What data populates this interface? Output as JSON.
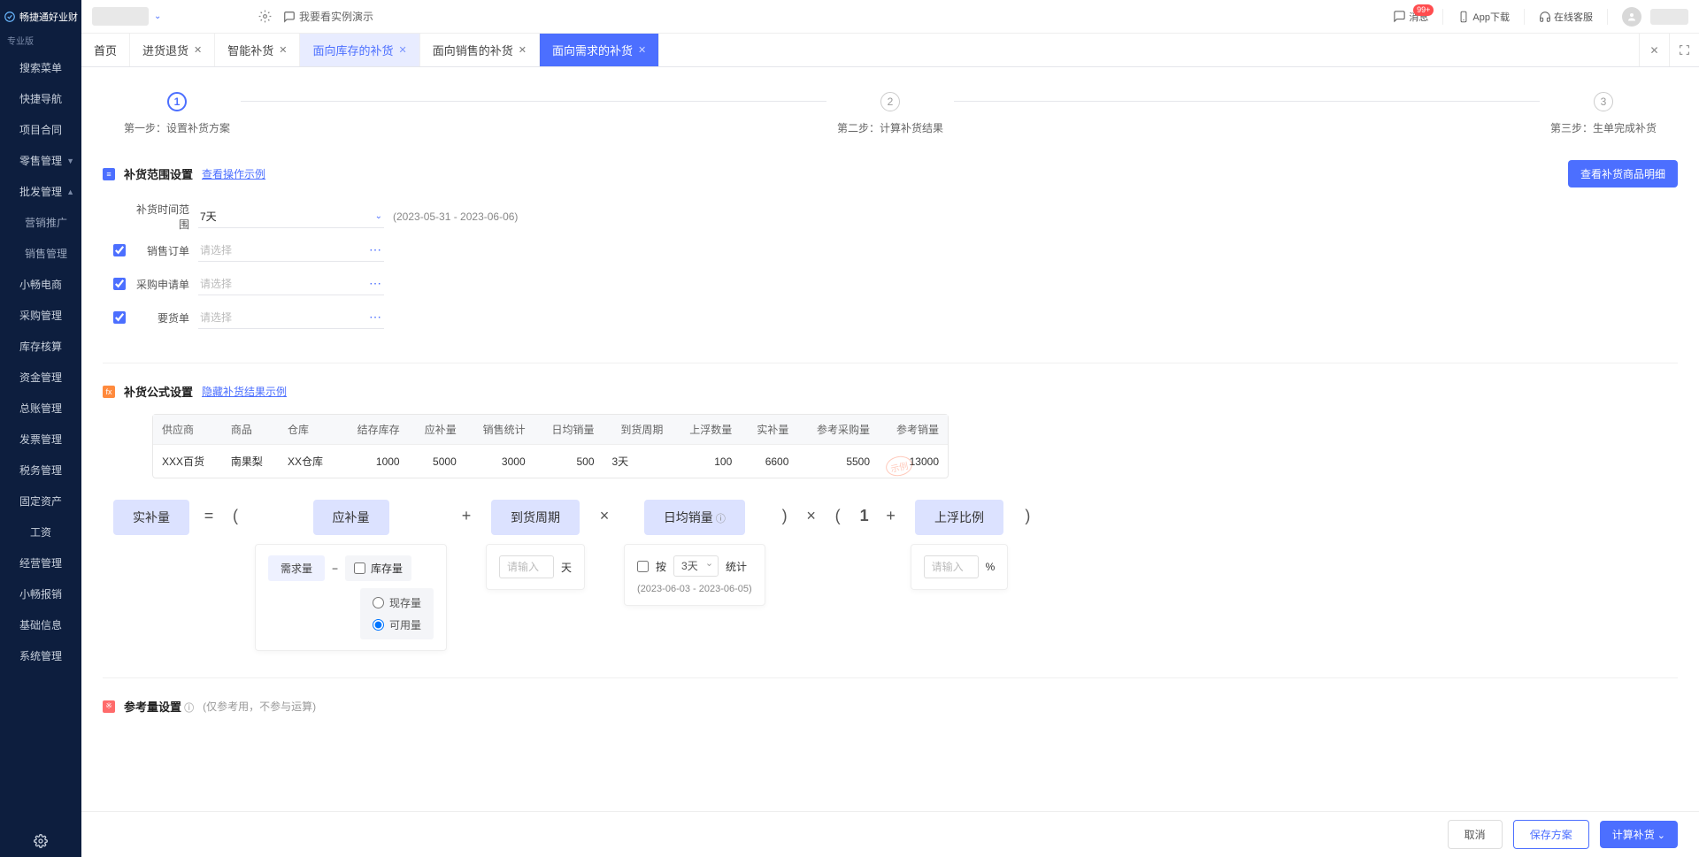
{
  "brand": {
    "name": "畅捷通好业财",
    "edition": "专业版"
  },
  "sidebar": {
    "items": [
      {
        "label": "搜索菜单",
        "chev": ""
      },
      {
        "label": "快捷导航",
        "chev": ""
      },
      {
        "label": "项目合同",
        "chev": ""
      },
      {
        "label": "零售管理",
        "chev": "▼"
      },
      {
        "label": "批发管理",
        "chev": "▲"
      },
      {
        "label": "营销推广",
        "sub": true
      },
      {
        "label": "销售管理",
        "sub": true
      },
      {
        "label": "小畅电商",
        "chev": ""
      },
      {
        "label": "采购管理",
        "chev": ""
      },
      {
        "label": "库存核算",
        "chev": ""
      },
      {
        "label": "资金管理",
        "chev": ""
      },
      {
        "label": "总账管理",
        "chev": ""
      },
      {
        "label": "发票管理",
        "chev": ""
      },
      {
        "label": "税务管理",
        "chev": ""
      },
      {
        "label": "固定资产",
        "chev": ""
      },
      {
        "label": "工资",
        "chev": ""
      },
      {
        "label": "经营管理",
        "chev": ""
      },
      {
        "label": "小畅报销",
        "chev": ""
      },
      {
        "label": "基础信息",
        "chev": ""
      },
      {
        "label": "系统管理",
        "chev": ""
      }
    ]
  },
  "topbar": {
    "demo": "我要看实例演示",
    "badge": "99+",
    "actions": {
      "msg": "消息",
      "app": "App下载",
      "svc": "在线客服"
    }
  },
  "tabs": [
    {
      "label": "首页",
      "closable": false,
      "state": "home"
    },
    {
      "label": "进货退货",
      "closable": true,
      "state": ""
    },
    {
      "label": "智能补货",
      "closable": true,
      "state": ""
    },
    {
      "label": "面向库存的补货",
      "closable": true,
      "state": "secondary"
    },
    {
      "label": "面向销售的补货",
      "closable": true,
      "state": ""
    },
    {
      "label": "面向需求的补货",
      "closable": true,
      "state": "active"
    }
  ],
  "steps": [
    {
      "num": "1",
      "label": "第一步：设置补货方案",
      "current": true
    },
    {
      "num": "2",
      "label": "第二步：计算补货结果"
    },
    {
      "num": "3",
      "label": "第三步：生单完成补货"
    }
  ],
  "range": {
    "title": "补货范围设置",
    "exampleLink": "查看操作示例",
    "viewDetailBtn": "查看补货商品明细",
    "timeLabel": "补货时间范围",
    "timeValue": "7天",
    "timeHint": "(2023-05-31  -  2023-06-06)",
    "rows": [
      {
        "label": "销售订单",
        "placeholder": "请选择"
      },
      {
        "label": "采购申请单",
        "placeholder": "请选择"
      },
      {
        "label": "要货单",
        "placeholder": "请选择"
      }
    ]
  },
  "formula": {
    "title": "补货公式设置",
    "hideLink": "隐藏补货结果示例",
    "table": {
      "columns": [
        "供应商",
        "商品",
        "仓库",
        "结存库存",
        "应补量",
        "销售统计",
        "日均销量",
        "到货周期",
        "上浮数量",
        "实补量",
        "参考采购量",
        "参考销量"
      ],
      "row": [
        "XXX百货",
        "南果梨",
        "XX仓库",
        "1000",
        "5000",
        "3000",
        "500",
        "3天",
        "100",
        "6600",
        "5500",
        "13000"
      ],
      "watermark": "示例"
    },
    "blocks": {
      "result": "实补量",
      "should": "应补量",
      "lead": "到货周期",
      "dayavg": "日均销量",
      "markup": "上浮比例"
    },
    "should_sub": {
      "demand": "需求量",
      "stock": "库存量",
      "opt1": "现存量",
      "opt2": "可用量"
    },
    "lead_sub": {
      "placeholder": "请输入",
      "unit": "天"
    },
    "dayavg_sub": {
      "byLabel": "按",
      "periodValue": "3天",
      "statLabel": "统计",
      "dateHint": "(2023-06-03  -  2023-06-05)"
    },
    "markup_sub": {
      "placeholder": "请输入",
      "unit": "%"
    }
  },
  "ref": {
    "title": "参考量设置",
    "note": "(仅参考用，不参与运算)"
  },
  "footer": {
    "cancel": "取消",
    "save": "保存方案",
    "calc": "计算补货"
  }
}
